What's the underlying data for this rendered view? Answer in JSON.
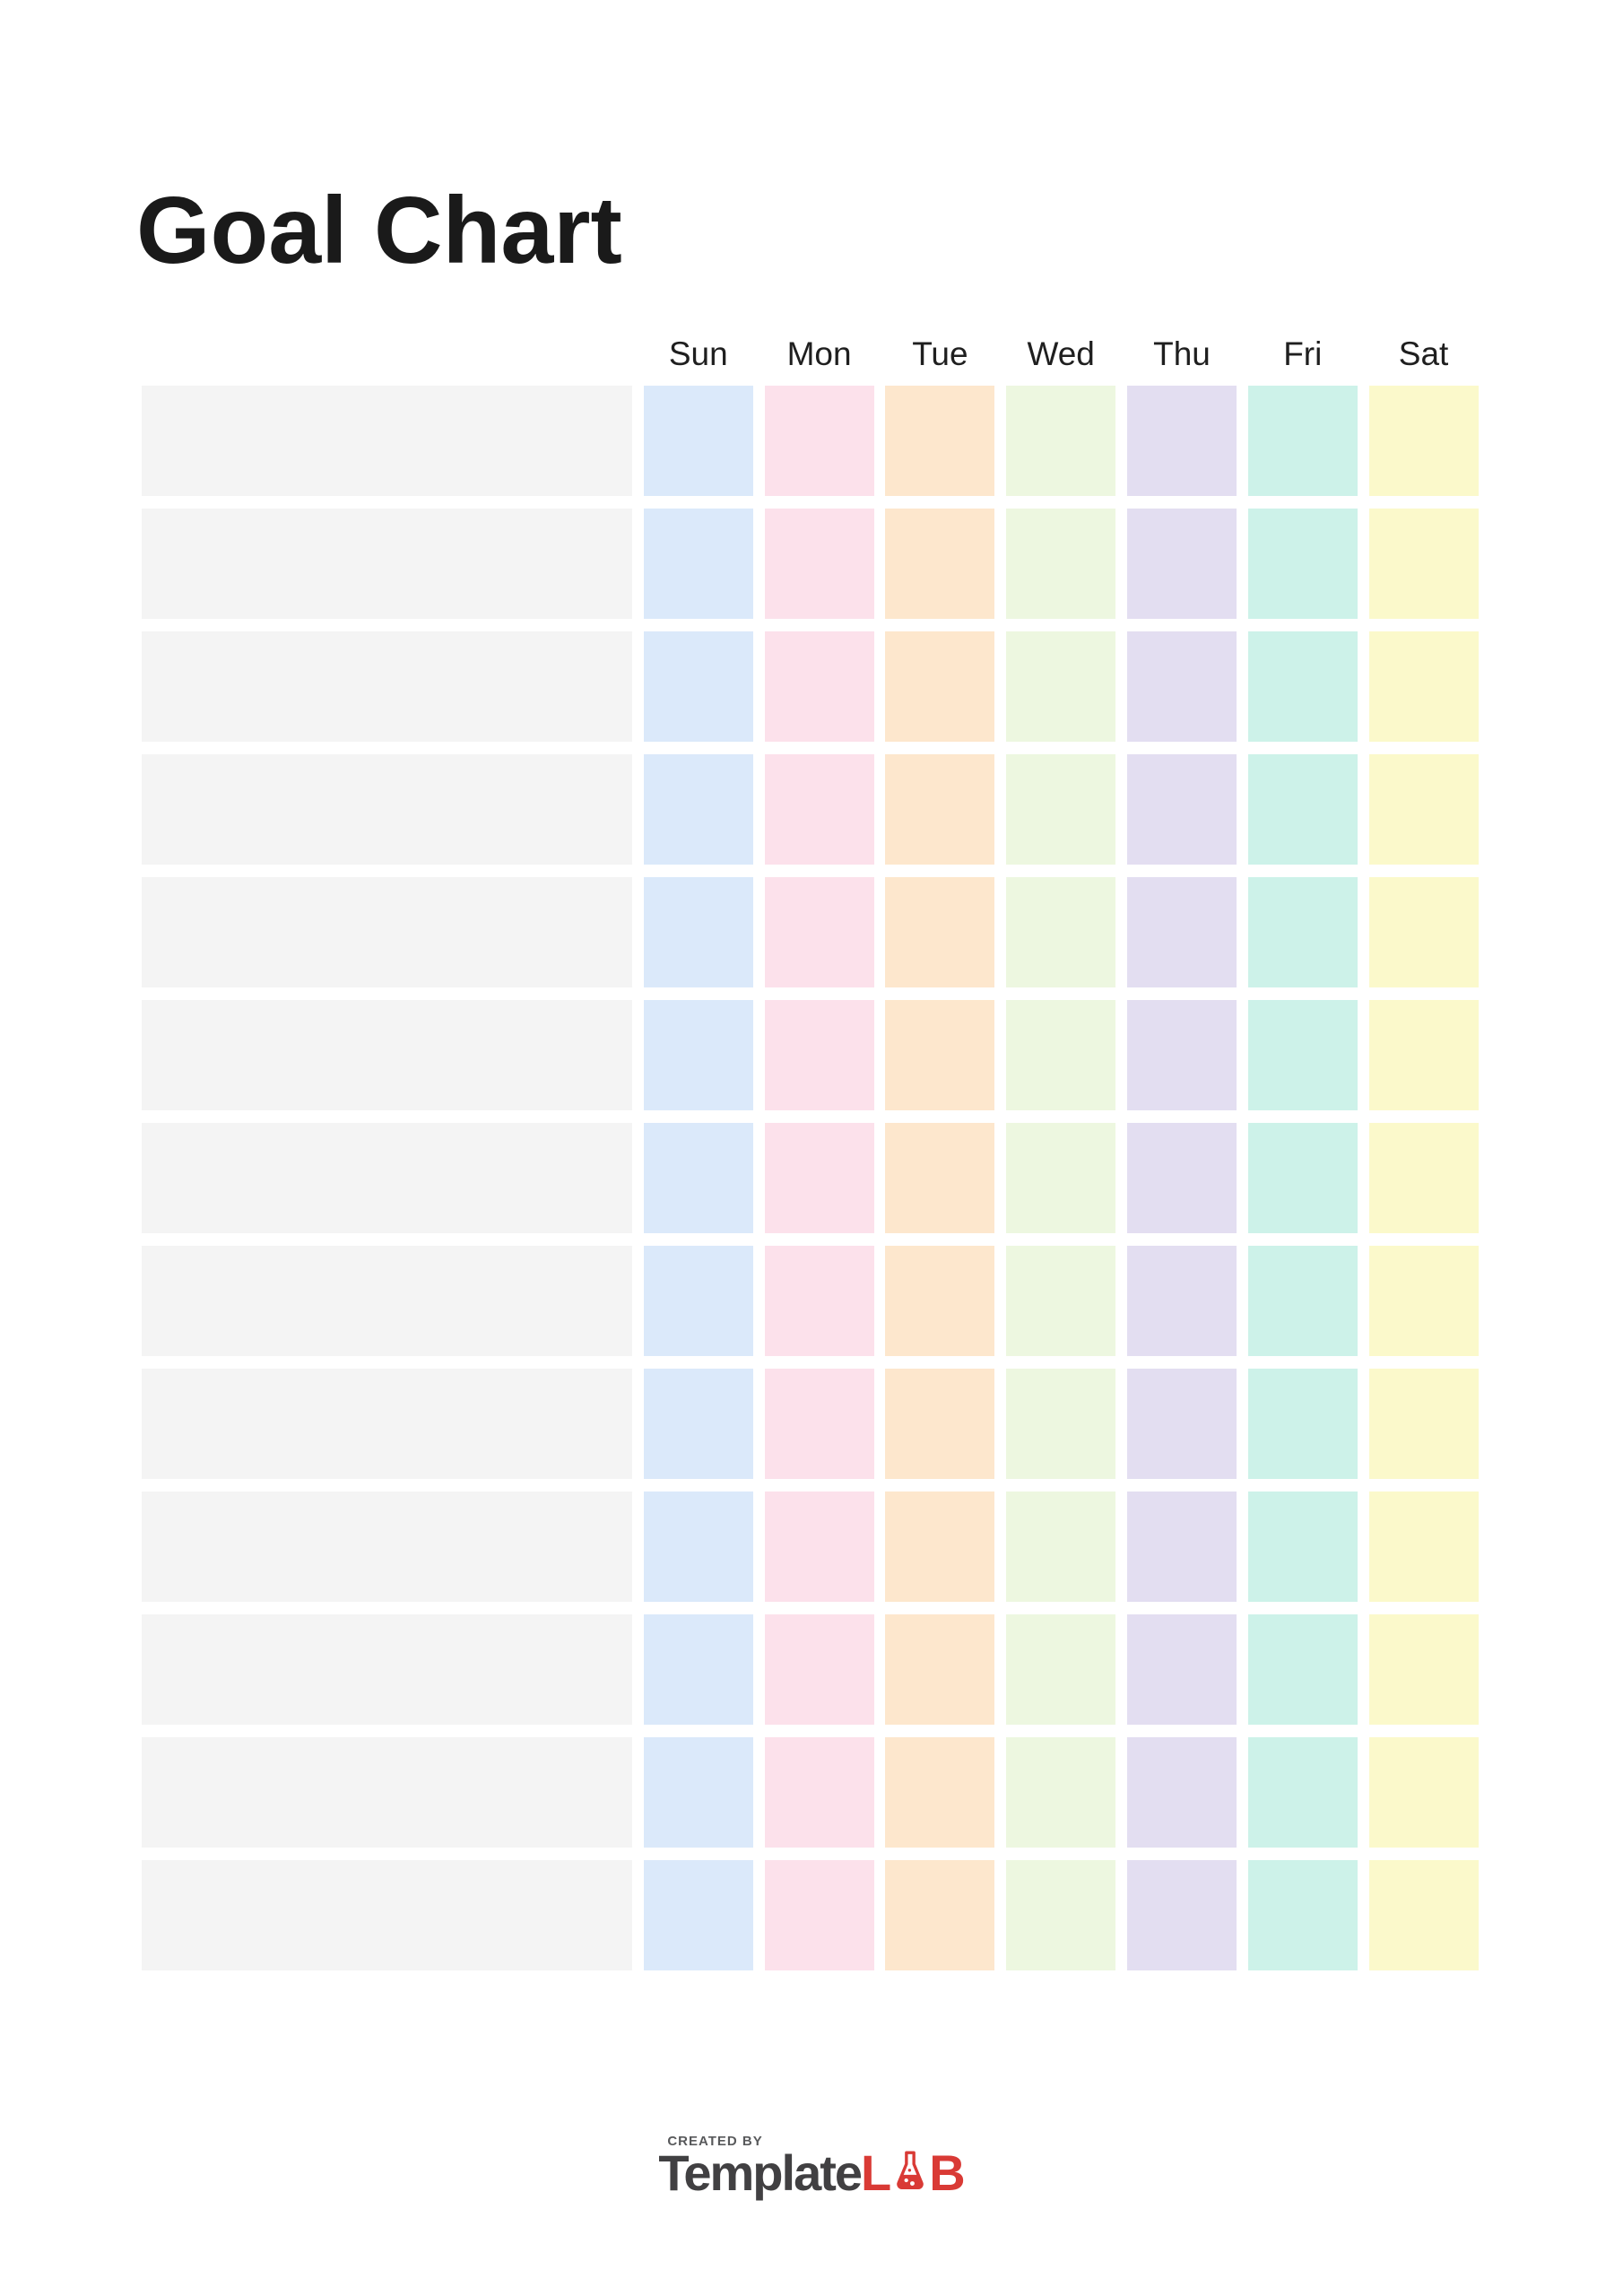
{
  "page": {
    "title": "Goal Chart",
    "background_color": "#ffffff"
  },
  "days": [
    {
      "id": "sun",
      "label": "Sun",
      "color": "#dbe9fa"
    },
    {
      "id": "mon",
      "label": "Mon",
      "color": "#fce1eb"
    },
    {
      "id": "tue",
      "label": "Tue",
      "color": "#fde7cd"
    },
    {
      "id": "wed",
      "label": "Wed",
      "color": "#edf7e0"
    },
    {
      "id": "thu",
      "label": "Thu",
      "color": "#e3def1"
    },
    {
      "id": "fri",
      "label": "Fri",
      "color": "#cdf2e9"
    },
    {
      "id": "sat",
      "label": "Sat",
      "color": "#fbf9cb"
    }
  ],
  "grid": {
    "row_count": 13,
    "label_cell_color": "#f4f4f4",
    "row_labels": [
      "",
      "",
      "",
      "",
      "",
      "",
      "",
      "",
      "",
      "",
      "",
      "",
      ""
    ]
  },
  "footer": {
    "created_by": "CREATED BY",
    "brand_primary": "Template",
    "brand_l": "L",
    "brand_b": "B",
    "brand_primary_color": "#414042",
    "brand_accent_color": "#d93a35",
    "created_by_color": "#58595b"
  }
}
